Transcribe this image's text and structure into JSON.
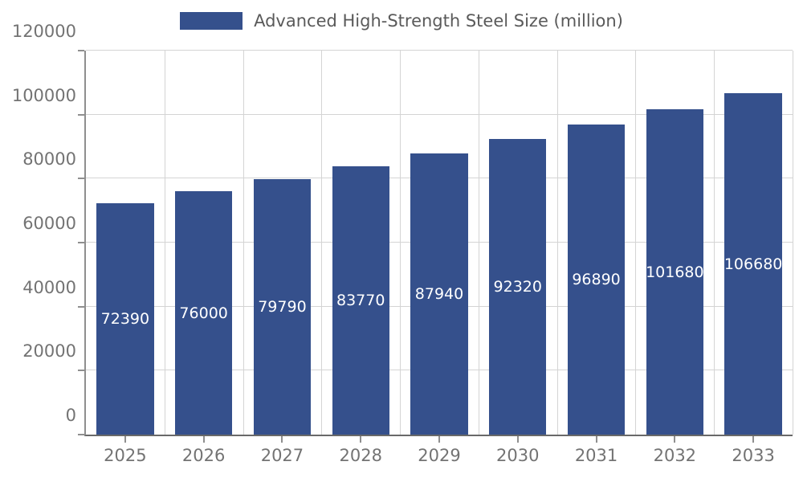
{
  "legend": {
    "label": "Advanced High-Strength Steel Size (million)"
  },
  "colors": {
    "bar": "#35508c",
    "grid": "#d4d4d4",
    "axis": "#8f8f8f",
    "tick_text": "#737373",
    "value_text": "#ffffff",
    "legend_text": "#5a5a5a"
  },
  "chart_data": {
    "type": "bar",
    "title": "Advanced High-Strength Steel Size (million)",
    "categories": [
      "2025",
      "2026",
      "2027",
      "2028",
      "2029",
      "2030",
      "2031",
      "2032",
      "2033"
    ],
    "values": [
      72390,
      76000,
      79790,
      83770,
      87940,
      92320,
      96890,
      101680,
      106680
    ],
    "xlabel": "",
    "ylabel": "",
    "ylim": [
      0,
      120000
    ],
    "ytick_step": 20000,
    "ytick_labels": [
      "0",
      "20000",
      "40000",
      "60000",
      "80000",
      "100000",
      "120000"
    ],
    "grid": true,
    "legend_position": "top",
    "value_labels": "inside-center"
  }
}
